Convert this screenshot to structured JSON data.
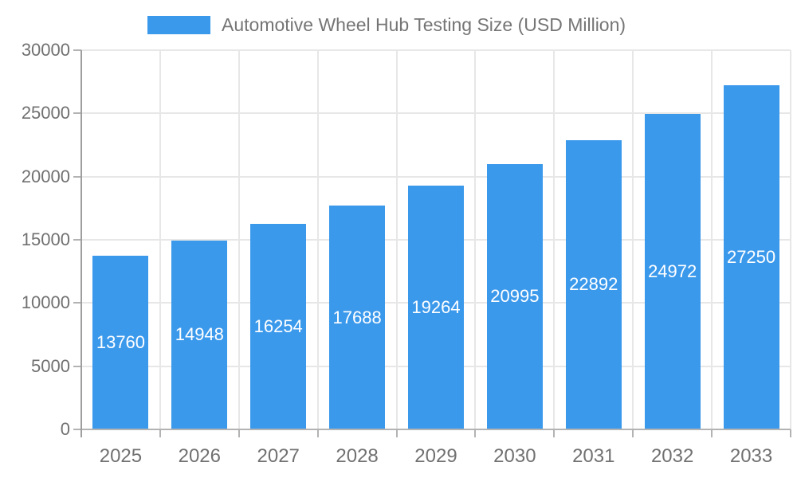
{
  "legend": {
    "label": "Automotive Wheel Hub Testing Size (USD Million)"
  },
  "colors": {
    "bar": "#3B99EC",
    "grid": "#E7E7E7",
    "y_axis": "#9E9E9E",
    "baseline": "#B3B3B3",
    "tick": "#B3B3B3",
    "axis_text": "#717171",
    "legend_text": "#757575",
    "bar_label_text": "#FFFFFF",
    "background": "#FFFFFF"
  },
  "chart_data": {
    "type": "bar",
    "title": "",
    "legend_entries": [
      "Automotive Wheel Hub Testing Size (USD Million)"
    ],
    "legend_position": "top",
    "categories": [
      "2025",
      "2026",
      "2027",
      "2028",
      "2029",
      "2030",
      "2031",
      "2032",
      "2033"
    ],
    "values": [
      13760,
      14948,
      16254,
      17688,
      19264,
      20995,
      22892,
      24972,
      27250
    ],
    "xlabel": "",
    "ylabel": "",
    "ylim": [
      0,
      30000
    ],
    "y_ticks": [
      0,
      5000,
      10000,
      15000,
      20000,
      25000,
      30000
    ],
    "grid": true,
    "bar_value_labels": "inside-center"
  }
}
